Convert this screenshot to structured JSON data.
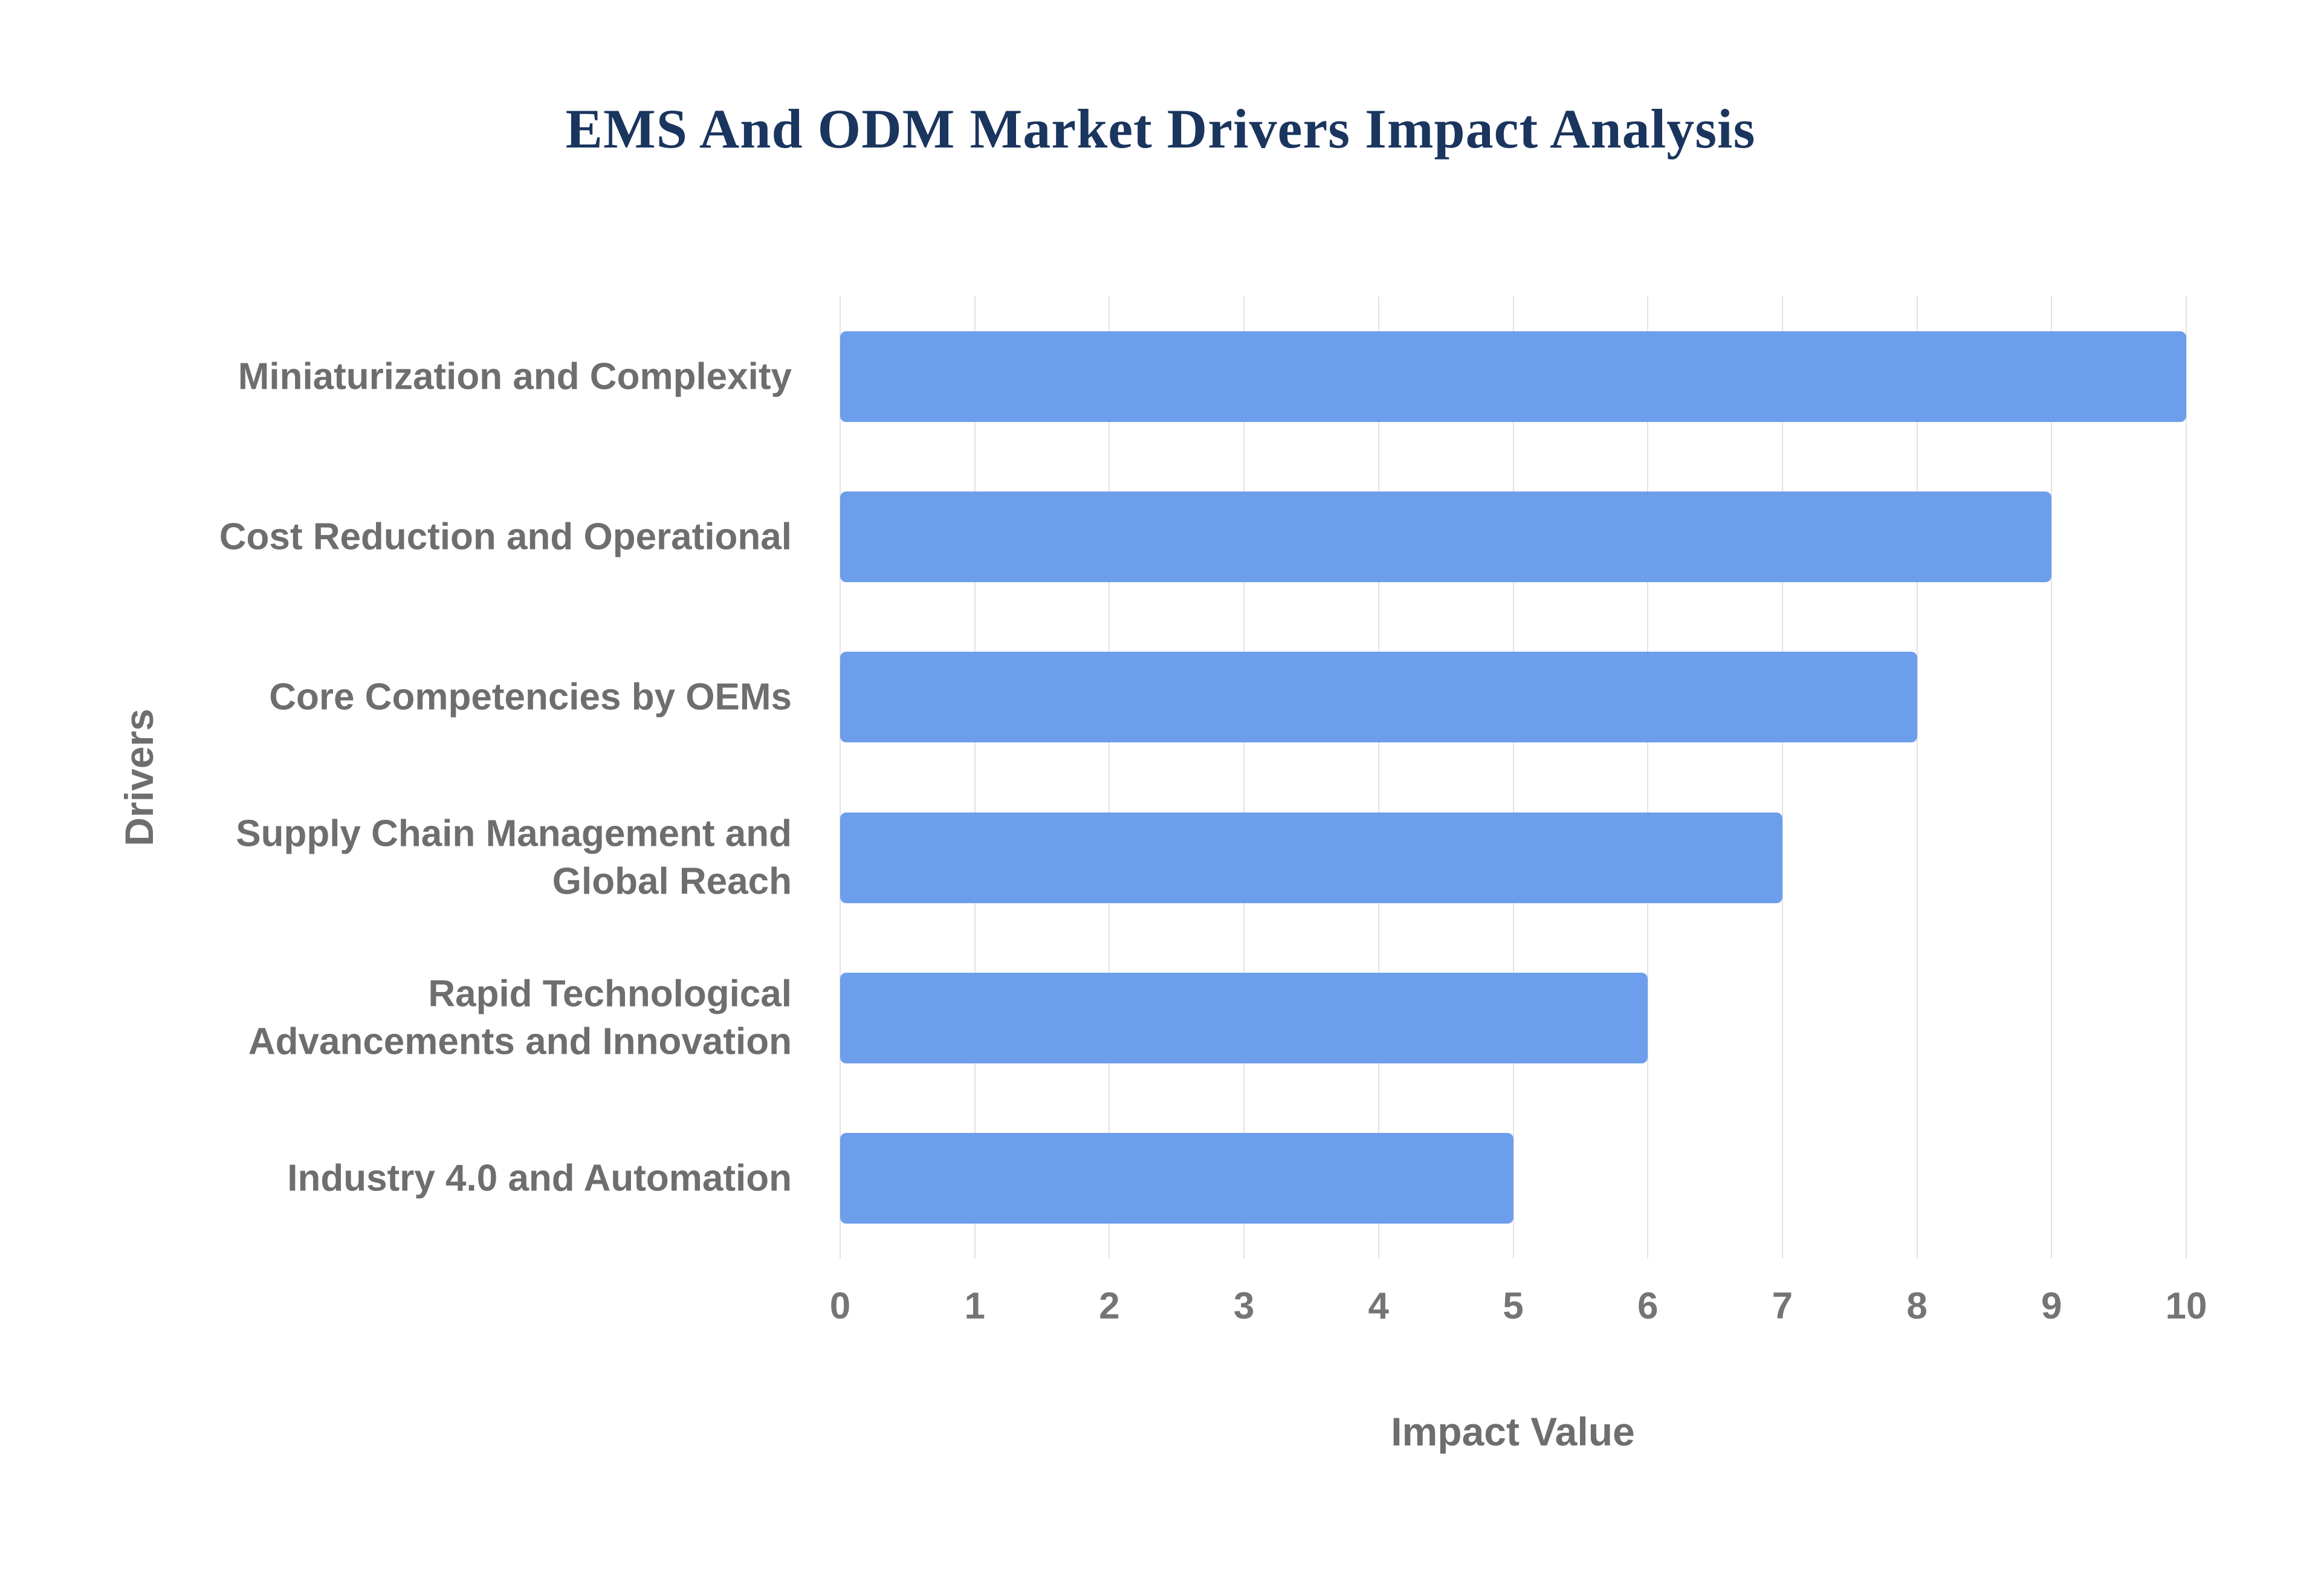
{
  "title": "EMS And ODM Market Drivers Impact Analysis",
  "chart_data": {
    "type": "bar",
    "orientation": "horizontal",
    "title": "EMS And ODM Market Drivers Impact Analysis",
    "categories": [
      "Miniaturization and Complexity",
      "Cost Reduction and Operational",
      "Core Competencies by OEMs",
      "Supply Chain Management and\nGlobal Reach",
      "Rapid Technological\nAdvancements and Innovation",
      "Industry 4.0 and Automation"
    ],
    "values": [
      10,
      9,
      8,
      7,
      6,
      5
    ],
    "xlabel": "Impact Value",
    "ylabel": "Drivers",
    "xlim": [
      0,
      10
    ],
    "xticks": [
      0,
      1,
      2,
      3,
      4,
      5,
      6,
      7,
      8,
      9,
      10
    ],
    "grid": true,
    "legend": "none",
    "bar_color": "#6d9eeb",
    "grid_color": "#e3e3e3",
    "label_color": "#6e6e6e",
    "title_color": "#1a355e"
  }
}
